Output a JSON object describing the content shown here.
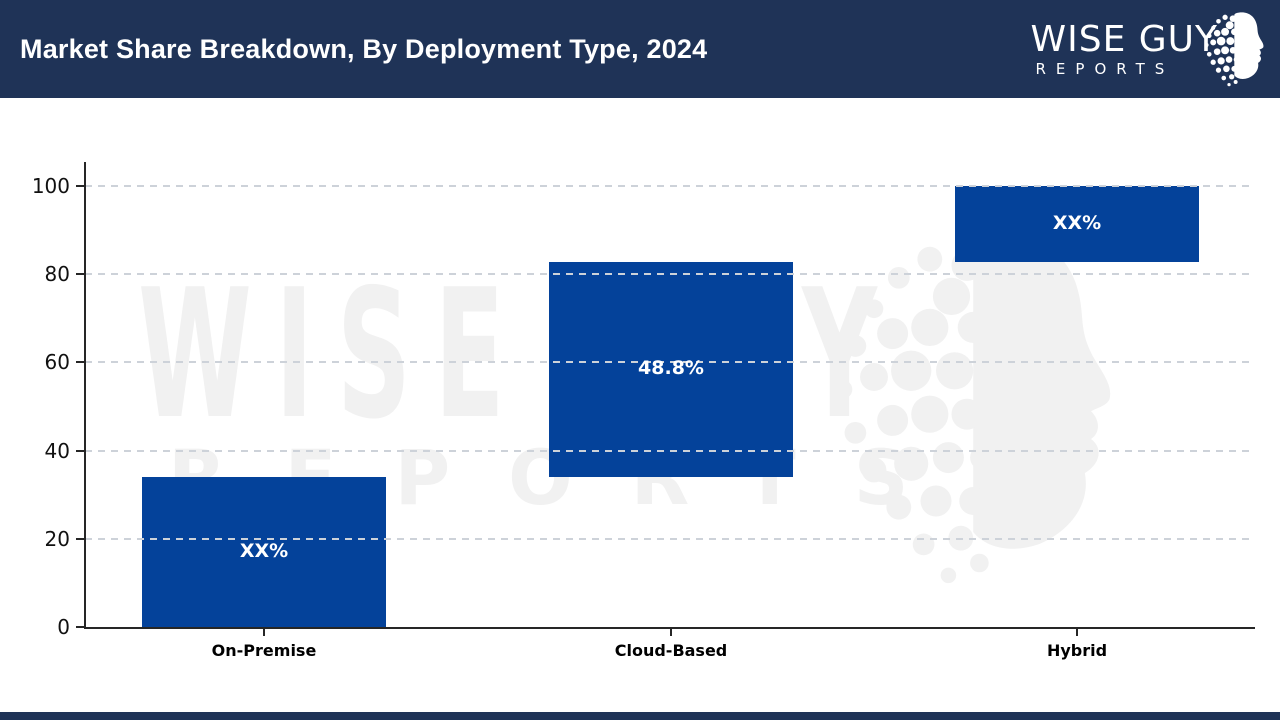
{
  "header": {
    "title": "Market Share Breakdown, By Deployment Type, 2024",
    "logo": {
      "line1": "WISE GUY",
      "line2": "REPORTS"
    }
  },
  "watermark": {
    "line1": "WISE GUY",
    "line2": "REPORTS"
  },
  "chart_data": {
    "type": "bar",
    "subtype": "stacked-waterfall",
    "title": "Market Share Breakdown, By Deployment Type, 2024",
    "categories": [
      "On-Premise",
      "Cloud-Based",
      "Hybrid"
    ],
    "segments": [
      {
        "category": "On-Premise",
        "start": 0,
        "end": 34,
        "value_label": "XX%"
      },
      {
        "category": "Cloud-Based",
        "start": 34,
        "end": 82.8,
        "value_label": "48.8%"
      },
      {
        "category": "Hybrid",
        "start": 82.8,
        "end": 100,
        "value_label": "XX%"
      }
    ],
    "yticks": [
      0,
      20,
      40,
      60,
      80,
      100
    ],
    "ylim": [
      0,
      105
    ],
    "xlabel": "",
    "ylabel": "",
    "grid": "horizontal-dashed",
    "legend": "none",
    "bar_color": "#04429a",
    "value_label_color": "#ffffff",
    "axis_color": "#262626",
    "tick_label_color": "#111111",
    "grid_color": "#cdd2d9"
  },
  "colors": {
    "header_bg": "#1f3357",
    "footer_bg": "#1f3357",
    "watermark": "#f1f1f1",
    "background": "#ffffff"
  }
}
